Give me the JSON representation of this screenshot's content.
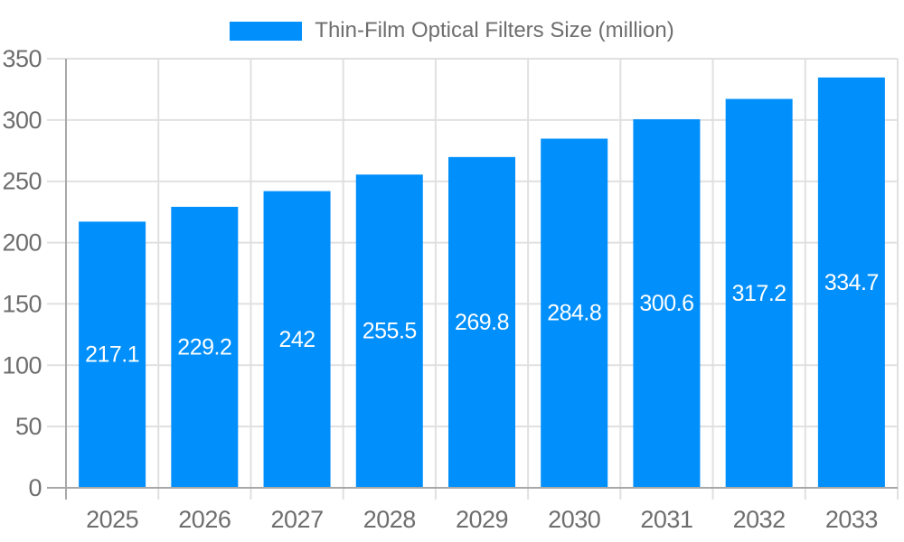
{
  "legend": {
    "label": "Thin-Film Optical Filters Size (million)"
  },
  "chart_data": {
    "type": "bar",
    "title": "Thin-Film Optical Filters Size (million)",
    "categories": [
      "2025",
      "2026",
      "2027",
      "2028",
      "2029",
      "2030",
      "2031",
      "2032",
      "2033"
    ],
    "values": [
      217.1,
      229.2,
      242,
      255.5,
      269.8,
      284.8,
      300.6,
      317.2,
      334.7
    ],
    "bar_labels": [
      "217.1",
      "229.2",
      "242",
      "255.5",
      "269.8",
      "284.8",
      "300.6",
      "317.2",
      "334.7"
    ],
    "xlabel": "",
    "ylabel": "",
    "ylim": [
      0,
      350
    ],
    "yticks": [
      0,
      50,
      100,
      150,
      200,
      250,
      300,
      350
    ],
    "grid": "both",
    "legend_position": "top",
    "value_label_position": "inside-center",
    "colors": {
      "bar": "#008FFB",
      "grid": "#e0e0e0",
      "axis": "#a8a8a8",
      "tick_label": "#6e6e6e",
      "bar_label": "#ffffff",
      "legend_text": "#6e6e6e"
    }
  }
}
